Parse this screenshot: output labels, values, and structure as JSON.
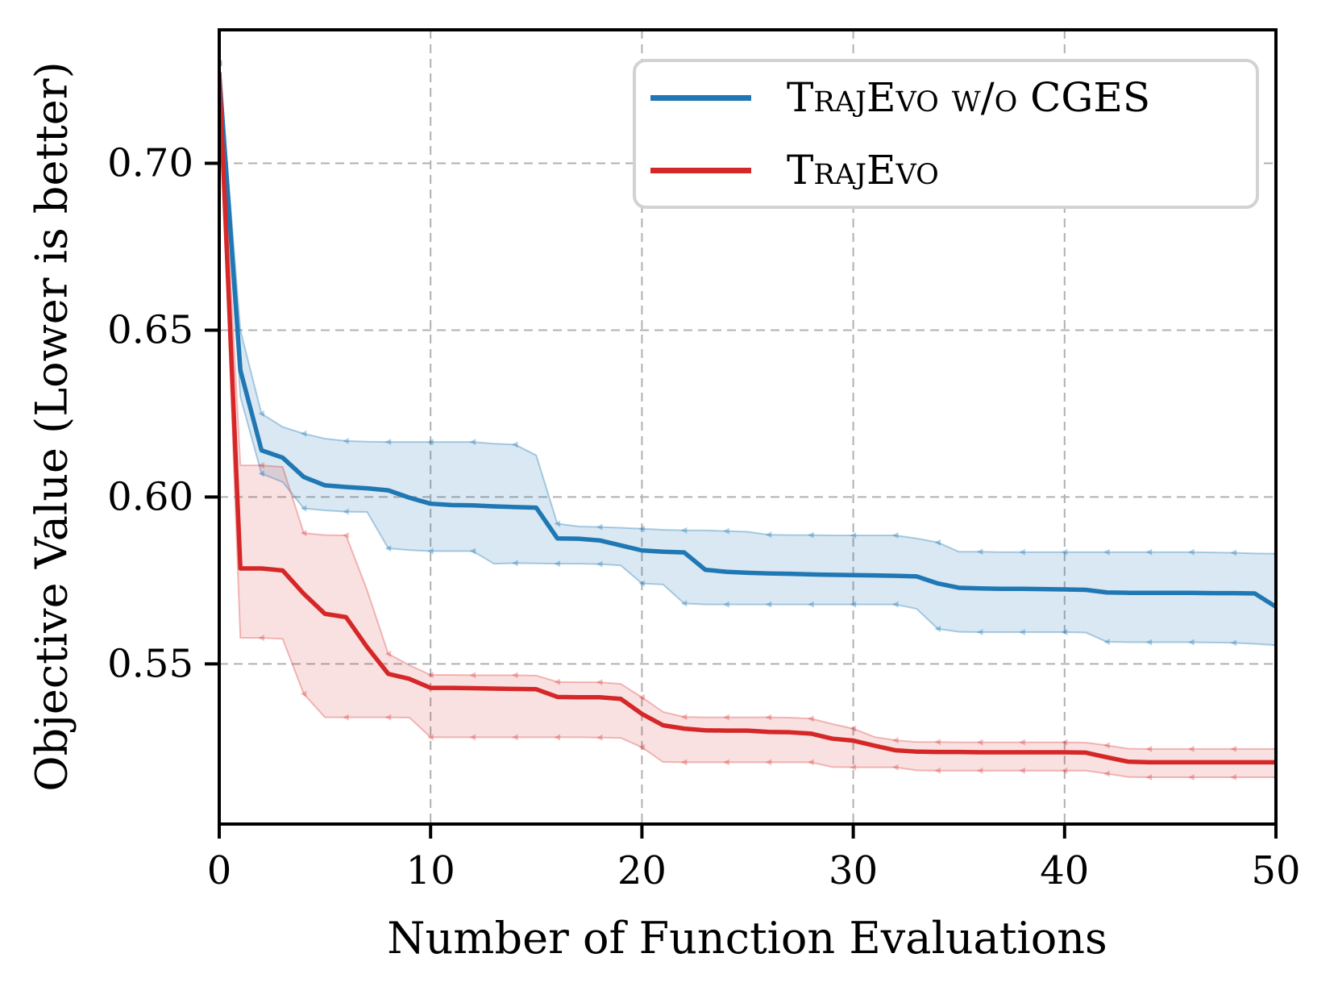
{
  "chart_data": {
    "type": "line",
    "title": "",
    "xlabel": "Number of Function Evaluations",
    "ylabel": "Objective Value (Lower is better)",
    "xlim": [
      0,
      50
    ],
    "ylim": [
      0.502,
      0.74
    ],
    "grid": true,
    "grid_color": "#b0b0b0",
    "frame_color": "#000000",
    "legend": {
      "position": "upper right",
      "border_color": "#d2d2d2",
      "background": "#ffffff"
    },
    "xticks": {
      "values": [
        0,
        10,
        20,
        30,
        40,
        50
      ],
      "labels": [
        "0",
        "10",
        "20",
        "30",
        "40",
        "50"
      ]
    },
    "yticks": {
      "values": [
        0.7,
        0.65,
        0.6,
        0.55
      ],
      "labels": [
        "0.70",
        "0.65",
        "0.60",
        "0.55"
      ]
    },
    "x": [
      0,
      1,
      2,
      3,
      4,
      5,
      6,
      7,
      8,
      9,
      10,
      11,
      12,
      13,
      14,
      15,
      16,
      17,
      18,
      19,
      20,
      21,
      22,
      23,
      24,
      25,
      26,
      27,
      28,
      29,
      30,
      31,
      32,
      33,
      34,
      35,
      36,
      37,
      38,
      39,
      40,
      41,
      42,
      43,
      44,
      45,
      46,
      47,
      48,
      49,
      50
    ],
    "series": [
      {
        "name": "TrajEvo w/o CGES",
        "color": "#1f77b4",
        "band_fill": "rgba(31,119,180,0.17)",
        "band_edge": "rgba(31,119,180,0.35)",
        "mean": [
          0.727,
          0.638,
          0.614,
          0.6118,
          0.606,
          0.6035,
          0.603,
          0.6026,
          0.602,
          0.5998,
          0.598,
          0.5976,
          0.5975,
          0.5972,
          0.597,
          0.5968,
          0.5876,
          0.5875,
          0.587,
          0.5855,
          0.584,
          0.5836,
          0.5834,
          0.5782,
          0.5776,
          0.5773,
          0.5771,
          0.577,
          0.5768,
          0.5767,
          0.5766,
          0.5765,
          0.5764,
          0.5762,
          0.5741,
          0.5728,
          0.5726,
          0.5725,
          0.5725,
          0.5724,
          0.5723,
          0.5722,
          0.5714,
          0.5713,
          0.5713,
          0.5713,
          0.5713,
          0.5712,
          0.5712,
          0.5711,
          0.5671
        ],
        "band_upper": [
          0.73,
          0.65,
          0.625,
          0.621,
          0.619,
          0.6175,
          0.6168,
          0.6166,
          0.6165,
          0.6165,
          0.6165,
          0.6165,
          0.6165,
          0.616,
          0.6157,
          0.6125,
          0.592,
          0.5912,
          0.591,
          0.5908,
          0.5905,
          0.5902,
          0.59,
          0.59,
          0.5898,
          0.5896,
          0.5887,
          0.5886,
          0.5886,
          0.5885,
          0.5885,
          0.5885,
          0.5885,
          0.5876,
          0.5864,
          0.5836,
          0.5836,
          0.5835,
          0.5835,
          0.5835,
          0.5835,
          0.5835,
          0.5835,
          0.5835,
          0.5835,
          0.5835,
          0.5835,
          0.5834,
          0.5833,
          0.5831,
          0.583
        ],
        "band_lower": [
          0.724,
          0.63,
          0.607,
          0.6045,
          0.5966,
          0.596,
          0.5956,
          0.5955,
          0.5846,
          0.5841,
          0.5838,
          0.5838,
          0.5838,
          0.58,
          0.5802,
          0.5801,
          0.58,
          0.58,
          0.5799,
          0.5795,
          0.5741,
          0.5738,
          0.5681,
          0.5678,
          0.5678,
          0.5678,
          0.5678,
          0.5678,
          0.5678,
          0.5678,
          0.5678,
          0.5678,
          0.5678,
          0.5665,
          0.5605,
          0.5596,
          0.5595,
          0.5595,
          0.5595,
          0.5595,
          0.5595,
          0.5594,
          0.5566,
          0.5565,
          0.5565,
          0.5565,
          0.5565,
          0.5564,
          0.5563,
          0.556,
          0.5556
        ]
      },
      {
        "name": "TrajEvo",
        "color": "#d62728",
        "band_fill": "rgba(214,39,40,0.14)",
        "band_edge": "rgba(214,39,40,0.30)",
        "mean": [
          0.727,
          0.5786,
          0.5786,
          0.578,
          0.571,
          0.565,
          0.564,
          0.555,
          0.547,
          0.5455,
          0.5428,
          0.5428,
          0.5427,
          0.5426,
          0.5425,
          0.5424,
          0.5401,
          0.54,
          0.54,
          0.5395,
          0.535,
          0.5316,
          0.5306,
          0.5301,
          0.53,
          0.53,
          0.5296,
          0.5295,
          0.5291,
          0.5276,
          0.527,
          0.5255,
          0.5241,
          0.5237,
          0.5236,
          0.5236,
          0.5235,
          0.5235,
          0.5235,
          0.5235,
          0.5235,
          0.5234,
          0.522,
          0.5207,
          0.5205,
          0.5205,
          0.5205,
          0.5205,
          0.5205,
          0.5205,
          0.5205
        ],
        "band_upper": [
          0.73,
          0.6095,
          0.6095,
          0.609,
          0.5892,
          0.5886,
          0.5885,
          0.572,
          0.553,
          0.5496,
          0.5467,
          0.5467,
          0.5466,
          0.5466,
          0.5466,
          0.5465,
          0.5446,
          0.5445,
          0.5445,
          0.544,
          0.54,
          0.5356,
          0.5341,
          0.534,
          0.534,
          0.534,
          0.534,
          0.5339,
          0.5336,
          0.532,
          0.5306,
          0.5281,
          0.5271,
          0.5266,
          0.5266,
          0.5265,
          0.5265,
          0.5265,
          0.5265,
          0.5265,
          0.5265,
          0.5264,
          0.5256,
          0.5246,
          0.5245,
          0.5245,
          0.5245,
          0.5245,
          0.5245,
          0.5245,
          0.5245
        ],
        "band_lower": [
          0.724,
          0.5578,
          0.5578,
          0.5575,
          0.541,
          0.534,
          0.534,
          0.534,
          0.534,
          0.5339,
          0.528,
          0.528,
          0.528,
          0.528,
          0.528,
          0.528,
          0.528,
          0.528,
          0.5279,
          0.5278,
          0.525,
          0.5206,
          0.5205,
          0.5205,
          0.5205,
          0.5205,
          0.5205,
          0.5205,
          0.5205,
          0.5191,
          0.519,
          0.519,
          0.519,
          0.5181,
          0.518,
          0.518,
          0.518,
          0.518,
          0.518,
          0.518,
          0.518,
          0.518,
          0.5171,
          0.5161,
          0.516,
          0.516,
          0.516,
          0.516,
          0.516,
          0.516,
          0.516
        ]
      }
    ]
  }
}
